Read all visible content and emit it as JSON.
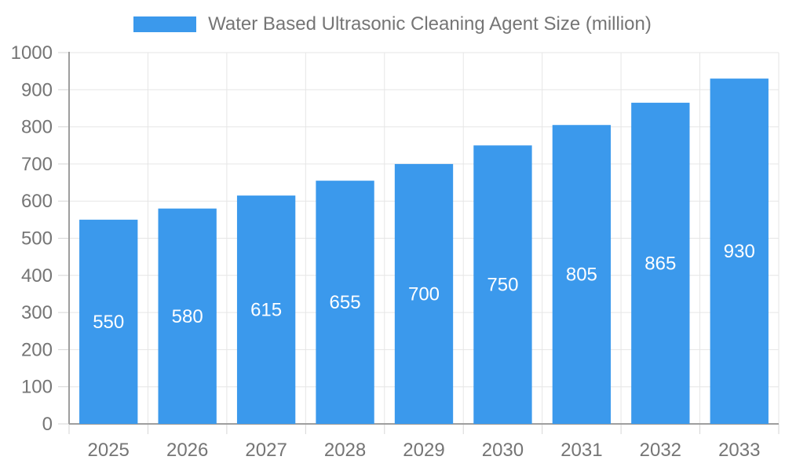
{
  "chart_data": {
    "type": "bar",
    "title": "Water Based Ultrasonic Cleaning Agent Size (million)",
    "legend": [
      "Water Based Ultrasonic Cleaning Agent Size (million)"
    ],
    "legend_position": "top",
    "categories": [
      "2025",
      "2026",
      "2027",
      "2028",
      "2029",
      "2030",
      "2031",
      "2032",
      "2033"
    ],
    "values": [
      550,
      580,
      615,
      655,
      700,
      750,
      805,
      865,
      930
    ],
    "xlabel": "",
    "ylabel": "",
    "ylim": [
      0,
      1000
    ],
    "ytick_step": 100,
    "yticks": [
      0,
      100,
      200,
      300,
      400,
      500,
      600,
      700,
      800,
      900,
      1000
    ],
    "grid": true,
    "bar_label_position": "inside-center",
    "colors": {
      "bar": "#3b99ec",
      "bar_value_label": "#ffffff",
      "axis_text": "#757575",
      "legend_text": "#757575",
      "gridline": "#e6e6e6",
      "tick": "#d6d6d6",
      "axis_line": "#9e9e9e",
      "background": "#ffffff"
    }
  }
}
